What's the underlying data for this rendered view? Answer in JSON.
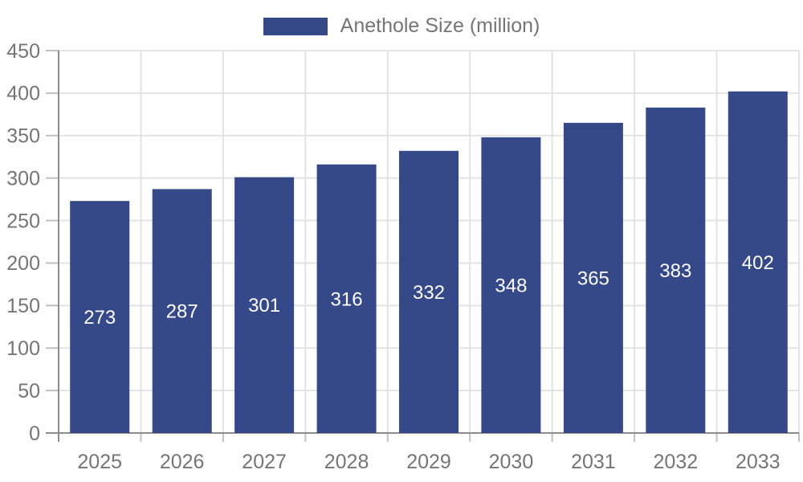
{
  "chart_data": {
    "type": "bar",
    "title": "",
    "legend": "Anethole Size (million)",
    "categories": [
      "2025",
      "2026",
      "2027",
      "2028",
      "2029",
      "2030",
      "2031",
      "2032",
      "2033"
    ],
    "series": [
      {
        "name": "Anethole Size (million)",
        "values": [
          273,
          287,
          301,
          316,
          332,
          348,
          365,
          383,
          402
        ]
      }
    ],
    "xlabel": "",
    "ylabel": "",
    "ylim": [
      0,
      450
    ],
    "ytick_step": 50,
    "grid": "on",
    "legend_position": "top-center",
    "value_labels": "inside-middle",
    "colors": {
      "bar_fill": "#354988",
      "value_label": "#ffffff",
      "axis_text": "#757575",
      "axis_line": "#8c8c8c",
      "gridline": "#e3e3e3",
      "tick": "#c0c0c0",
      "background": "#ffffff"
    }
  }
}
